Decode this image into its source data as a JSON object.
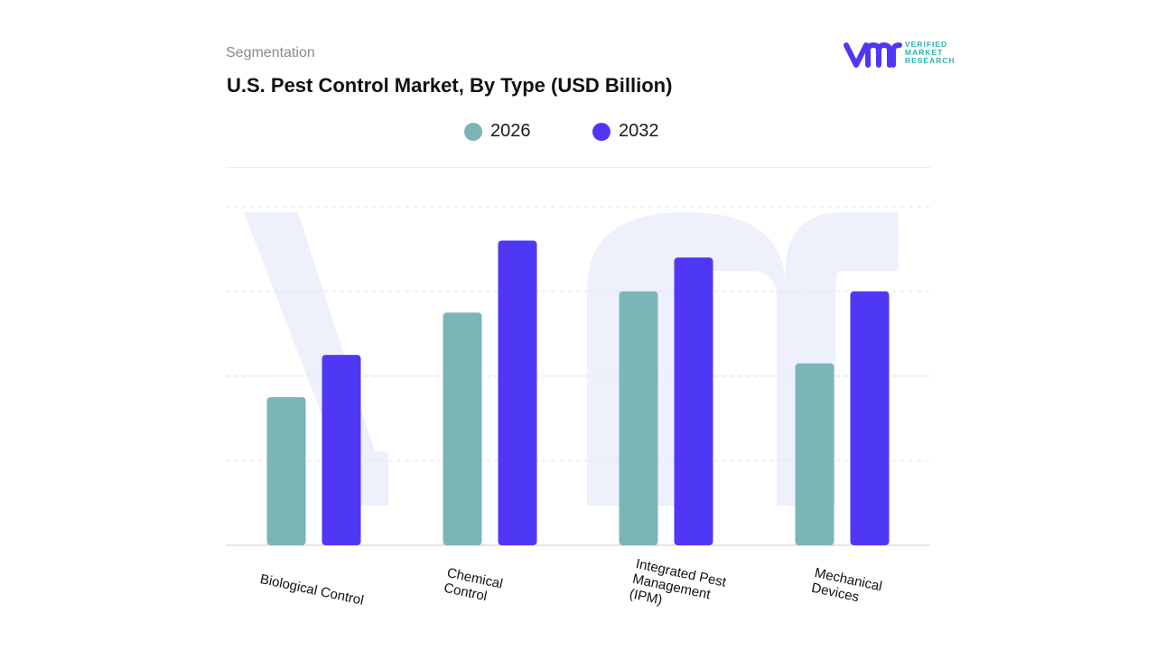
{
  "header": {
    "segment_label": "Segmentation",
    "logo_lines": [
      "VERIFIED",
      "MARKET",
      "RESEARCH"
    ]
  },
  "colors": {
    "series_2026": "#7bb5b7",
    "series_2032": "#4f38f5",
    "grid": "#e3e3e3",
    "watermark": "#eef0fb"
  },
  "chart_data": {
    "type": "bar",
    "title": "U.S. Pest Control Market, By Type (USD Billion)",
    "xlabel": "",
    "ylabel": "",
    "categories": [
      "Biological Control",
      "Chemical\nControl",
      "Integrated Pest\nManagement\n(IPM)",
      "Mechanical\nDevices"
    ],
    "series": [
      {
        "name": "2026",
        "values": [
          1.75,
          2.75,
          3.0,
          2.15
        ]
      },
      {
        "name": "2032",
        "values": [
          2.25,
          3.6,
          3.4,
          3.0
        ]
      }
    ],
    "ylim": [
      0,
      4.0
    ],
    "grid": true,
    "legend": "top-center"
  }
}
